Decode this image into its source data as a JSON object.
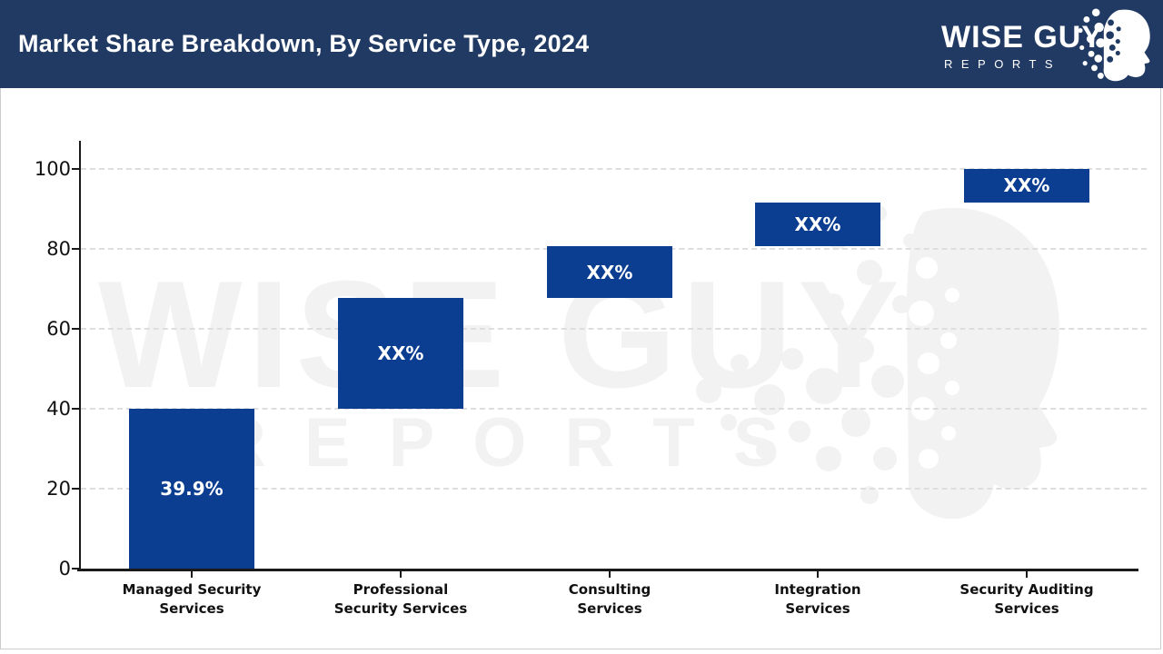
{
  "header": {
    "title": "Market Share Breakdown, By Service Type, 2024",
    "bg_color": "#213a64",
    "logo": {
      "line1": "WISE GUY",
      "line2": "REPORTS"
    }
  },
  "watermark": {
    "line1": "WISE GUY",
    "line2": "REPORTS"
  },
  "chart_data": {
    "type": "bar",
    "subtype": "waterfall",
    "title": "Market Share Breakdown, By Service Type, 2024",
    "xlabel": "",
    "ylabel": "",
    "ylim": [
      0,
      105
    ],
    "y_ticks": [
      0,
      20,
      40,
      60,
      80,
      100
    ],
    "grid": "horizontal-dashed",
    "bar_color": "#0b3d91",
    "categories": [
      "Managed Security Services",
      "Professional Security Services",
      "Consulting Services",
      "Integration Services",
      "Security Auditing Services"
    ],
    "bars": [
      {
        "category_lines": [
          "Managed Security",
          "Services"
        ],
        "start": 0,
        "end": 39.9,
        "label": "39.9%"
      },
      {
        "category_lines": [
          "Professional",
          "Security Services"
        ],
        "start": 39.9,
        "end": 67.7,
        "label": "XX%"
      },
      {
        "category_lines": [
          "Consulting",
          "Services"
        ],
        "start": 67.7,
        "end": 80.7,
        "label": "XX%"
      },
      {
        "category_lines": [
          "Integration",
          "Services"
        ],
        "start": 80.7,
        "end": 91.6,
        "label": "XX%"
      },
      {
        "category_lines": [
          "Security Auditing",
          "Services"
        ],
        "start": 91.6,
        "end": 100,
        "label": "XX%"
      }
    ]
  }
}
